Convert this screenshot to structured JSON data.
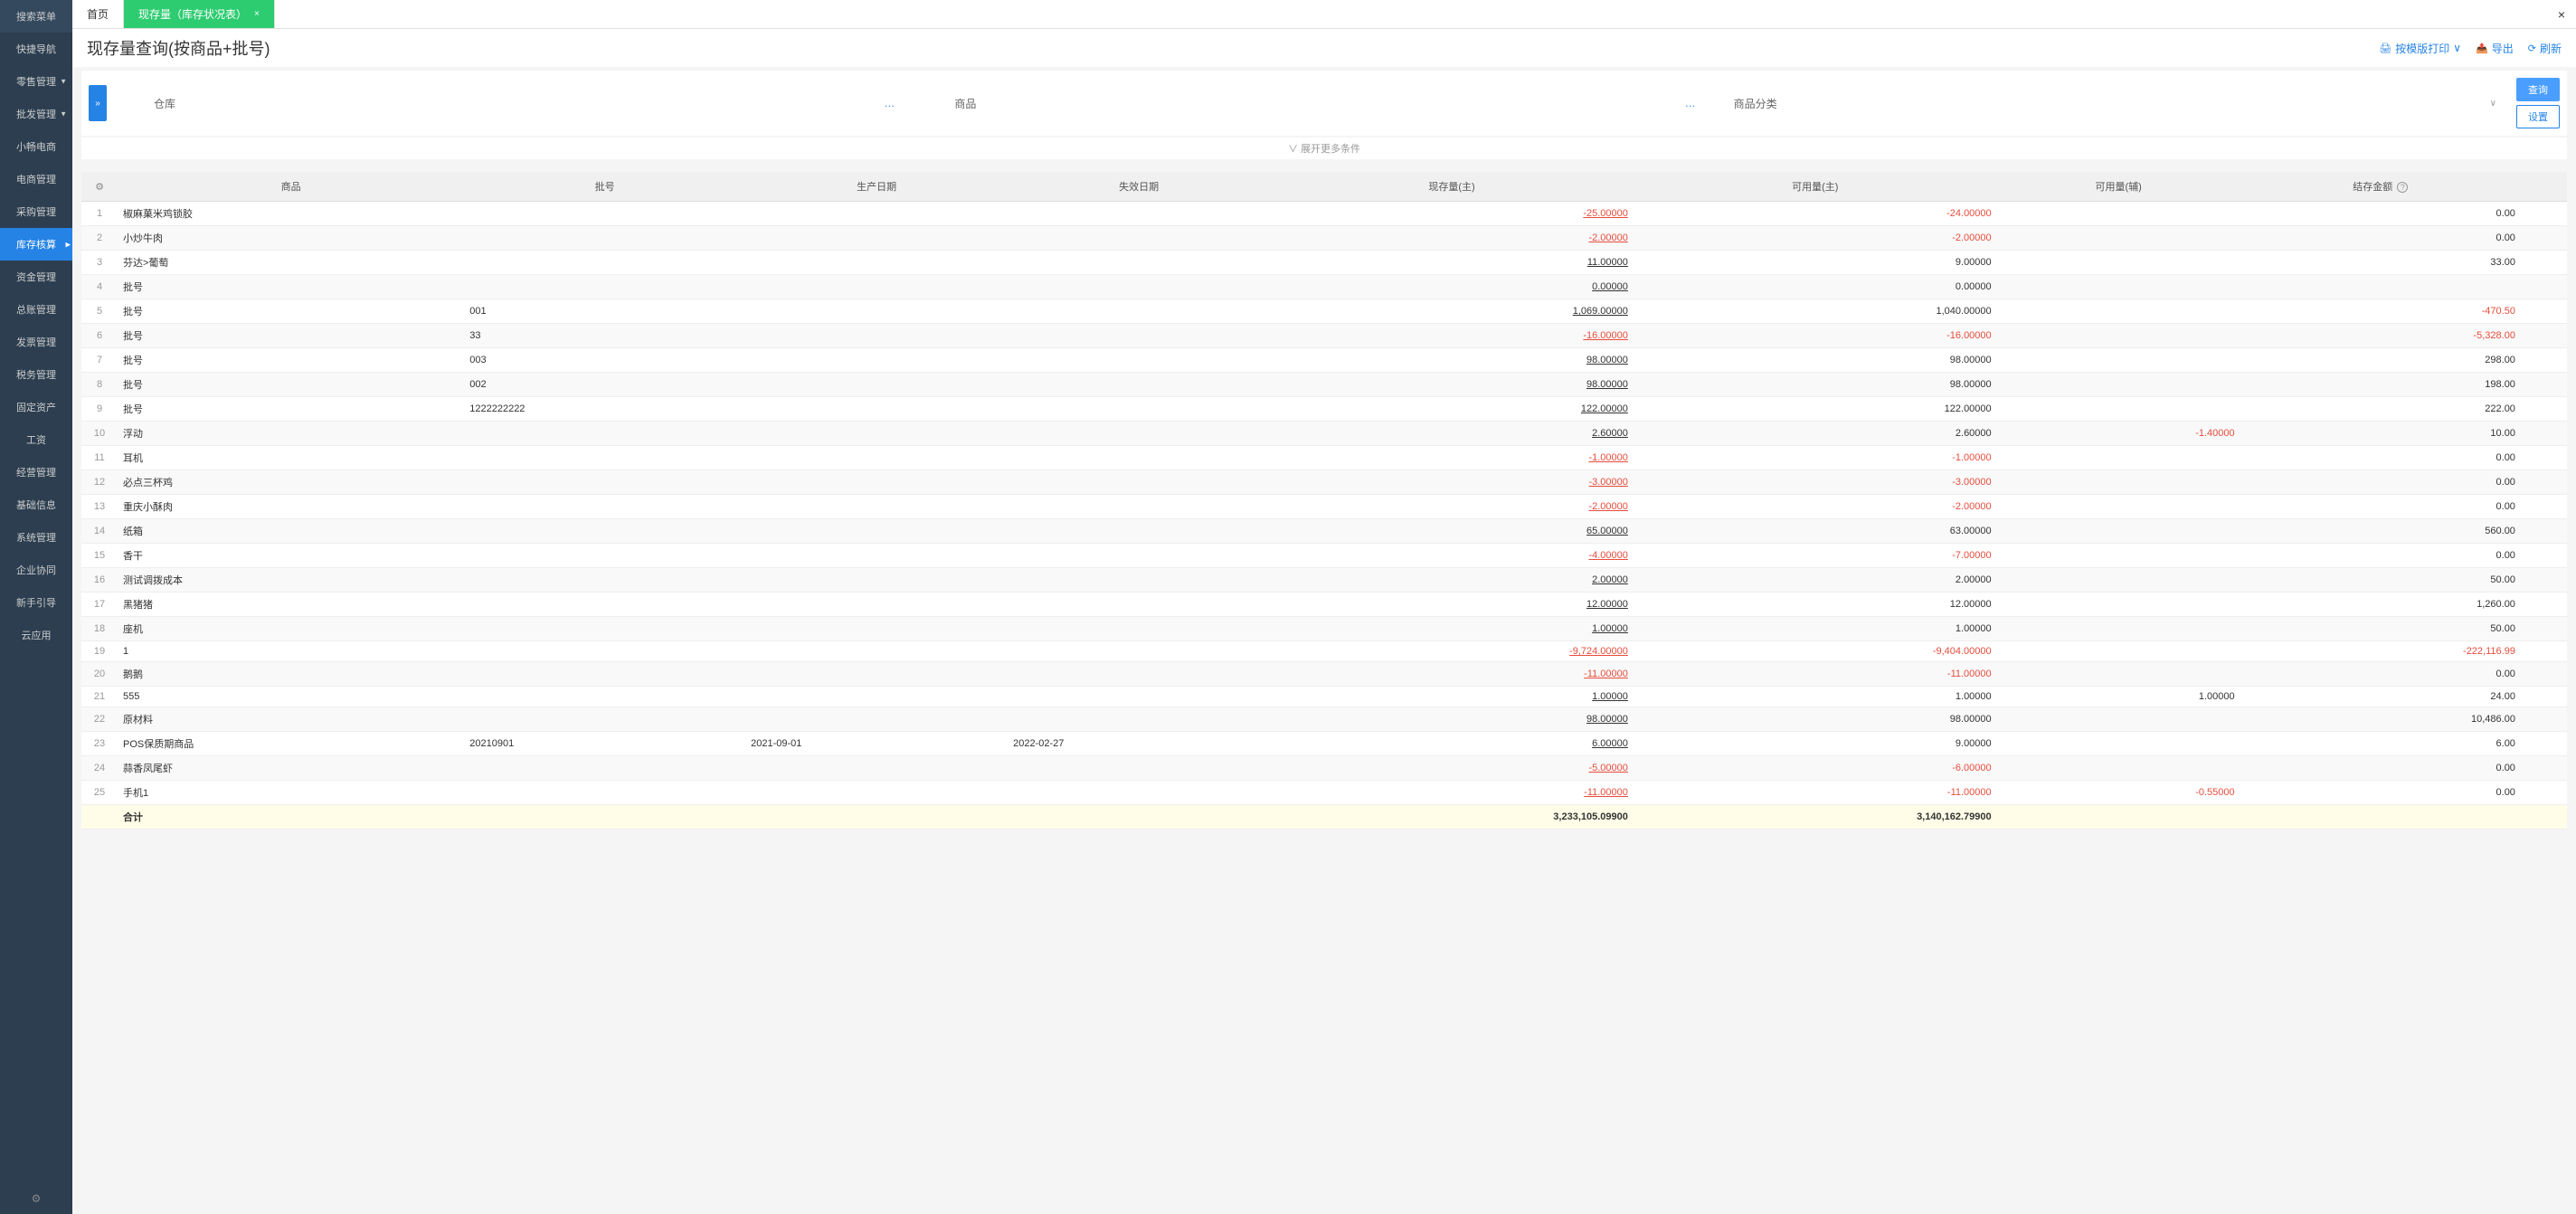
{
  "sidebar": {
    "items": [
      {
        "label": "搜索菜单",
        "caret": false
      },
      {
        "label": "快捷导航",
        "caret": false
      },
      {
        "label": "零售管理",
        "caret": true
      },
      {
        "label": "批发管理",
        "caret": true
      },
      {
        "label": "小畅电商",
        "caret": false
      },
      {
        "label": "电商管理",
        "caret": false
      },
      {
        "label": "采购管理",
        "caret": false
      },
      {
        "label": "库存核算",
        "caret": false,
        "active": true
      },
      {
        "label": "资金管理",
        "caret": false
      },
      {
        "label": "总账管理",
        "caret": false
      },
      {
        "label": "发票管理",
        "caret": false
      },
      {
        "label": "税务管理",
        "caret": false
      },
      {
        "label": "固定资产",
        "caret": false
      },
      {
        "label": "工资",
        "caret": false
      },
      {
        "label": "经营管理",
        "caret": false
      },
      {
        "label": "基础信息",
        "caret": false
      },
      {
        "label": "系统管理",
        "caret": false
      },
      {
        "label": "企业协同",
        "caret": false
      },
      {
        "label": "新手引导",
        "caret": false
      },
      {
        "label": "云应用",
        "caret": false
      }
    ]
  },
  "tabs": {
    "home": "首页",
    "active": "现存量（库存状况表）"
  },
  "page": {
    "title": "现存量查询(按商品+批号)",
    "actions": {
      "print": "按模版打印",
      "export": "导出",
      "refresh": "刷新"
    }
  },
  "filters": {
    "warehouse": "仓库",
    "product": "商品",
    "category": "商品分类",
    "query_btn": "查询",
    "settings_btn": "设置",
    "expand": "展开更多条件"
  },
  "table": {
    "headers": {
      "product": "商品",
      "batch": "批号",
      "prod_date": "生产日期",
      "expiry_date": "失效日期",
      "stock_main": "现存量(主)",
      "avail_main": "可用量(主)",
      "avail_aux": "可用量(辅)",
      "balance": "结存金额"
    },
    "rows": [
      {
        "idx": 1,
        "product": "椒麻菓米鸡锁胶",
        "batch": "",
        "prod": "",
        "exp": "",
        "stock": "-25.00000",
        "stock_neg": true,
        "avail": "-24.00000",
        "avail_neg": true,
        "aux": "",
        "bal": "0.00"
      },
      {
        "idx": 2,
        "product": "小炒牛肉",
        "batch": "",
        "prod": "",
        "exp": "",
        "stock": "-2.00000",
        "stock_neg": true,
        "avail": "-2.00000",
        "avail_neg": true,
        "aux": "",
        "bal": "0.00"
      },
      {
        "idx": 3,
        "product": "芬达>葡萄",
        "batch": "",
        "prod": "",
        "exp": "",
        "stock": "11.00000",
        "avail": "9.00000",
        "aux": "",
        "bal": "33.00"
      },
      {
        "idx": 4,
        "product": "批号",
        "batch": "",
        "prod": "",
        "exp": "",
        "stock": "0.00000",
        "avail": "0.00000",
        "aux": "",
        "bal": ""
      },
      {
        "idx": 5,
        "product": "批号",
        "batch": "001",
        "prod": "",
        "exp": "",
        "stock": "1,069.00000",
        "avail": "1,040.00000",
        "aux": "",
        "bal": "-470.50",
        "bal_neg": true
      },
      {
        "idx": 6,
        "product": "批号",
        "batch": "33",
        "prod": "",
        "exp": "",
        "stock": "-16.00000",
        "stock_neg": true,
        "avail": "-16.00000",
        "avail_neg": true,
        "aux": "",
        "bal": "-5,328.00",
        "bal_neg": true
      },
      {
        "idx": 7,
        "product": "批号",
        "batch": "003",
        "prod": "",
        "exp": "",
        "stock": "98.00000",
        "avail": "98.00000",
        "aux": "",
        "bal": "298.00"
      },
      {
        "idx": 8,
        "product": "批号",
        "batch": "002",
        "prod": "",
        "exp": "",
        "stock": "98.00000",
        "avail": "98.00000",
        "aux": "",
        "bal": "198.00"
      },
      {
        "idx": 9,
        "product": "批号",
        "batch": "1222222222",
        "prod": "",
        "exp": "",
        "stock": "122.00000",
        "avail": "122.00000",
        "aux": "",
        "bal": "222.00"
      },
      {
        "idx": 10,
        "product": "浮动",
        "batch": "",
        "prod": "",
        "exp": "",
        "stock": "2.60000",
        "avail": "2.60000",
        "aux": "-1.40000",
        "aux_neg": true,
        "bal": "10.00"
      },
      {
        "idx": 11,
        "product": "耳机",
        "batch": "",
        "prod": "",
        "exp": "",
        "stock": "-1.00000",
        "stock_neg": true,
        "avail": "-1.00000",
        "avail_neg": true,
        "aux": "",
        "bal": "0.00"
      },
      {
        "idx": 12,
        "product": "必点三杯鸡",
        "batch": "",
        "prod": "",
        "exp": "",
        "stock": "-3.00000",
        "stock_neg": true,
        "avail": "-3.00000",
        "avail_neg": true,
        "aux": "",
        "bal": "0.00"
      },
      {
        "idx": 13,
        "product": "重庆小酥肉",
        "batch": "",
        "prod": "",
        "exp": "",
        "stock": "-2.00000",
        "stock_neg": true,
        "avail": "-2.00000",
        "avail_neg": true,
        "aux": "",
        "bal": "0.00"
      },
      {
        "idx": 14,
        "product": "纸箱",
        "batch": "",
        "prod": "",
        "exp": "",
        "stock": "65.00000",
        "avail": "63.00000",
        "aux": "",
        "bal": "560.00"
      },
      {
        "idx": 15,
        "product": "香干",
        "batch": "",
        "prod": "",
        "exp": "",
        "stock": "-4.00000",
        "stock_neg": true,
        "avail": "-7.00000",
        "avail_neg": true,
        "aux": "",
        "bal": "0.00"
      },
      {
        "idx": 16,
        "product": "测试调拨成本",
        "batch": "",
        "prod": "",
        "exp": "",
        "stock": "2.00000",
        "avail": "2.00000",
        "aux": "",
        "bal": "50.00"
      },
      {
        "idx": 17,
        "product": "黑猪猪",
        "batch": "",
        "prod": "",
        "exp": "",
        "stock": "12.00000",
        "avail": "12.00000",
        "aux": "",
        "bal": "1,260.00"
      },
      {
        "idx": 18,
        "product": "座机",
        "batch": "",
        "prod": "",
        "exp": "",
        "stock": "1.00000",
        "avail": "1.00000",
        "aux": "",
        "bal": "50.00"
      },
      {
        "idx": 19,
        "product": "1",
        "batch": "",
        "prod": "",
        "exp": "",
        "stock": "-9,724.00000",
        "stock_neg": true,
        "avail": "-9,404.00000",
        "avail_neg": true,
        "aux": "",
        "bal": "-222,116.99",
        "bal_neg": true
      },
      {
        "idx": 20,
        "product": "鹅鹅",
        "batch": "",
        "prod": "",
        "exp": "",
        "stock": "-11.00000",
        "stock_neg": true,
        "avail": "-11.00000",
        "avail_neg": true,
        "aux": "",
        "bal": "0.00"
      },
      {
        "idx": 21,
        "product": "555",
        "batch": "",
        "prod": "",
        "exp": "",
        "stock": "1.00000",
        "avail": "1.00000",
        "aux": "1.00000",
        "bal": "24.00"
      },
      {
        "idx": 22,
        "product": "原材料",
        "batch": "",
        "prod": "",
        "exp": "",
        "stock": "98.00000",
        "avail": "98.00000",
        "aux": "",
        "bal": "10,486.00"
      },
      {
        "idx": 23,
        "product": "POS保质期商品",
        "batch": "20210901",
        "prod": "2021-09-01",
        "exp": "2022-02-27",
        "stock": "6.00000",
        "avail": "9.00000",
        "aux": "",
        "bal": "6.00"
      },
      {
        "idx": 24,
        "product": "蒜香凤尾虾",
        "batch": "",
        "prod": "",
        "exp": "",
        "stock": "-5.00000",
        "stock_neg": true,
        "avail": "-6.00000",
        "avail_neg": true,
        "aux": "",
        "bal": "0.00"
      },
      {
        "idx": 25,
        "product": "手机1",
        "batch": "",
        "prod": "",
        "exp": "",
        "stock": "-11.00000",
        "stock_neg": true,
        "avail": "-11.00000",
        "avail_neg": true,
        "aux": "-0.55000",
        "aux_neg": true,
        "bal": "0.00"
      }
    ],
    "sum": {
      "label": "合计",
      "stock": "3,233,105.09900",
      "avail": "3,140,162.79900"
    }
  }
}
